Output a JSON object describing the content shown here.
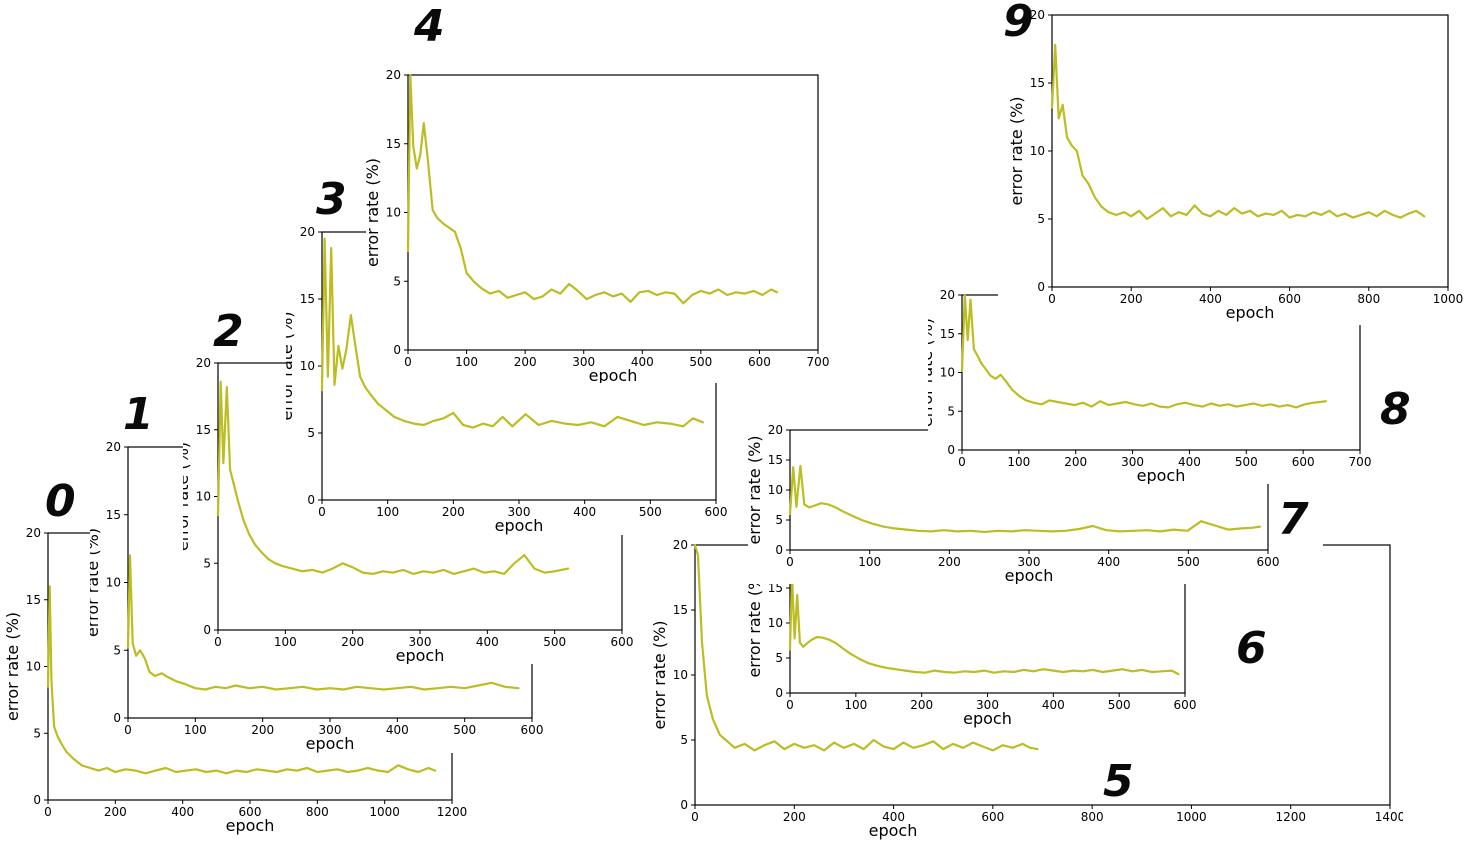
{
  "page": {
    "background": "#ffffff",
    "axis_color": "#000000",
    "line_color": "#bcbd22"
  },
  "chart_data": [
    {
      "type": "line",
      "label": "0",
      "xlabel": "epoch",
      "ylabel": "error rate (%)",
      "xlim": [
        0,
        1200
      ],
      "ylim": [
        0,
        20
      ],
      "xticks": [
        0,
        200,
        400,
        600,
        800,
        1000,
        1200
      ],
      "yticks": [
        0,
        5,
        10,
        15,
        20
      ],
      "line_color": "#bcbd22",
      "grid": false,
      "legend": "none",
      "x": [
        0,
        5,
        10,
        18,
        28,
        40,
        55,
        75,
        100,
        125,
        150,
        175,
        200,
        230,
        260,
        290,
        320,
        350,
        380,
        410,
        440,
        470,
        500,
        530,
        560,
        590,
        620,
        650,
        680,
        710,
        740,
        770,
        800,
        830,
        860,
        890,
        920,
        950,
        980,
        1010,
        1040,
        1070,
        1100,
        1130,
        1150
      ],
      "y": [
        8.5,
        16,
        9,
        5.5,
        4.8,
        4.2,
        3.6,
        3.1,
        2.6,
        2.4,
        2.2,
        2.4,
        2.1,
        2.3,
        2.2,
        2.0,
        2.2,
        2.4,
        2.1,
        2.2,
        2.3,
        2.1,
        2.2,
        2.0,
        2.2,
        2.1,
        2.3,
        2.2,
        2.1,
        2.3,
        2.2,
        2.4,
        2.1,
        2.2,
        2.3,
        2.1,
        2.2,
        2.4,
        2.2,
        2.1,
        2.6,
        2.3,
        2.1,
        2.4,
        2.2
      ]
    },
    {
      "type": "line",
      "label": "1",
      "xlabel": "epoch",
      "ylabel": "error rate (%)",
      "xlim": [
        0,
        600
      ],
      "ylim": [
        0,
        20
      ],
      "xticks": [
        0,
        100,
        200,
        300,
        400,
        500,
        600
      ],
      "yticks": [
        0,
        5,
        10,
        15,
        20
      ],
      "line_color": "#bcbd22",
      "grid": false,
      "legend": "none",
      "x": [
        0,
        3,
        7,
        12,
        18,
        25,
        32,
        40,
        50,
        60,
        72,
        85,
        100,
        115,
        130,
        145,
        160,
        180,
        200,
        220,
        240,
        260,
        280,
        300,
        320,
        340,
        360,
        380,
        400,
        420,
        440,
        460,
        480,
        500,
        520,
        540,
        560,
        580
      ],
      "y": [
        5.2,
        12,
        5.5,
        4.6,
        5.0,
        4.4,
        3.4,
        3.1,
        3.3,
        3.0,
        2.7,
        2.5,
        2.2,
        2.1,
        2.3,
        2.2,
        2.4,
        2.2,
        2.3,
        2.1,
        2.2,
        2.3,
        2.1,
        2.2,
        2.1,
        2.3,
        2.2,
        2.1,
        2.2,
        2.3,
        2.1,
        2.2,
        2.3,
        2.2,
        2.4,
        2.6,
        2.3,
        2.2
      ]
    },
    {
      "type": "line",
      "label": "2",
      "xlabel": "epoch",
      "ylabel": "error rate (%)",
      "xlim": [
        0,
        600
      ],
      "ylim": [
        0,
        20
      ],
      "xticks": [
        0,
        100,
        200,
        300,
        400,
        500,
        600
      ],
      "yticks": [
        0,
        5,
        10,
        15,
        20
      ],
      "line_color": "#bcbd22",
      "grid": false,
      "legend": "none",
      "x": [
        0,
        4,
        8,
        13,
        18,
        24,
        30,
        38,
        46,
        55,
        65,
        75,
        85,
        95,
        110,
        125,
        140,
        155,
        170,
        185,
        200,
        215,
        230,
        245,
        260,
        275,
        290,
        305,
        320,
        335,
        350,
        365,
        380,
        395,
        410,
        425,
        440,
        455,
        470,
        485,
        500,
        520
      ],
      "y": [
        8.6,
        18.6,
        12.5,
        18.2,
        12.0,
        10.8,
        9.6,
        8.2,
        7.2,
        6.4,
        5.8,
        5.3,
        5.0,
        4.8,
        4.6,
        4.4,
        4.5,
        4.3,
        4.6,
        5.0,
        4.7,
        4.3,
        4.2,
        4.4,
        4.3,
        4.5,
        4.2,
        4.4,
        4.3,
        4.5,
        4.2,
        4.4,
        4.6,
        4.3,
        4.4,
        4.2,
        5.0,
        5.6,
        4.6,
        4.3,
        4.4,
        4.6
      ]
    },
    {
      "type": "line",
      "label": "3",
      "xlabel": "epoch",
      "ylabel": "error rate (%)",
      "xlim": [
        0,
        600
      ],
      "ylim": [
        0,
        20
      ],
      "xticks": [
        0,
        100,
        200,
        300,
        400,
        500,
        600
      ],
      "yticks": [
        0,
        5,
        10,
        15,
        20
      ],
      "line_color": "#bcbd22",
      "grid": false,
      "legend": "none",
      "x": [
        0,
        4,
        9,
        14,
        19,
        25,
        31,
        37,
        44,
        50,
        58,
        66,
        75,
        85,
        95,
        110,
        125,
        140,
        155,
        170,
        185,
        200,
        215,
        230,
        245,
        260,
        275,
        290,
        310,
        330,
        350,
        370,
        390,
        410,
        430,
        450,
        470,
        490,
        510,
        530,
        550,
        565,
        580
      ],
      "y": [
        8.2,
        19.5,
        9.2,
        18.8,
        8.6,
        11.5,
        9.8,
        11.2,
        13.8,
        11.8,
        9.2,
        8.4,
        7.8,
        7.2,
        6.8,
        6.2,
        5.9,
        5.7,
        5.6,
        5.9,
        6.1,
        6.5,
        5.6,
        5.4,
        5.7,
        5.5,
        6.2,
        5.5,
        6.4,
        5.6,
        5.9,
        5.7,
        5.6,
        5.8,
        5.5,
        6.2,
        5.9,
        5.6,
        5.8,
        5.7,
        5.5,
        6.1,
        5.8
      ]
    },
    {
      "type": "line",
      "label": "4",
      "xlabel": "epoch",
      "ylabel": "error rate (%)",
      "xlim": [
        0,
        700
      ],
      "ylim": [
        0,
        20
      ],
      "xticks": [
        0,
        100,
        200,
        300,
        400,
        500,
        600,
        700
      ],
      "yticks": [
        0,
        5,
        10,
        15,
        20
      ],
      "line_color": "#bcbd22",
      "grid": false,
      "legend": "none",
      "x": [
        0,
        4,
        9,
        15,
        21,
        27,
        34,
        42,
        50,
        60,
        70,
        80,
        90,
        100,
        112,
        125,
        140,
        155,
        170,
        185,
        200,
        215,
        230,
        245,
        260,
        275,
        290,
        305,
        320,
        335,
        350,
        365,
        380,
        395,
        410,
        425,
        440,
        455,
        470,
        485,
        500,
        515,
        530,
        545,
        560,
        575,
        590,
        605,
        620,
        630
      ],
      "y": [
        7.2,
        20,
        14.8,
        13.2,
        14.2,
        16.5,
        13.8,
        10.2,
        9.6,
        9.2,
        8.9,
        8.6,
        7.4,
        5.6,
        5.0,
        4.5,
        4.1,
        4.3,
        3.8,
        4.0,
        4.2,
        3.7,
        3.9,
        4.4,
        4.1,
        4.8,
        4.3,
        3.7,
        4.0,
        4.2,
        3.9,
        4.1,
        3.5,
        4.2,
        4.3,
        4.0,
        4.2,
        4.1,
        3.4,
        4.0,
        4.3,
        4.1,
        4.4,
        4.0,
        4.2,
        4.1,
        4.3,
        4.0,
        4.4,
        4.2
      ]
    },
    {
      "type": "line",
      "label": "5",
      "xlabel": "epoch",
      "ylabel": "error rate (%)",
      "xlim": [
        0,
        1400
      ],
      "ylim": [
        0,
        20
      ],
      "xticks": [
        0,
        200,
        400,
        600,
        800,
        1000,
        1200,
        1400
      ],
      "yticks": [
        0,
        5,
        10,
        15,
        20
      ],
      "line_color": "#bcbd22",
      "grid": false,
      "legend": "none",
      "x": [
        0,
        6,
        14,
        24,
        36,
        50,
        65,
        80,
        100,
        120,
        140,
        160,
        180,
        200,
        220,
        240,
        260,
        280,
        300,
        320,
        340,
        360,
        380,
        400,
        420,
        440,
        460,
        480,
        500,
        520,
        540,
        560,
        580,
        600,
        620,
        640,
        660,
        675,
        690
      ],
      "y": [
        20,
        19.2,
        12.5,
        8.4,
        6.6,
        5.4,
        4.9,
        4.4,
        4.7,
        4.2,
        4.6,
        4.9,
        4.3,
        4.7,
        4.4,
        4.6,
        4.2,
        4.8,
        4.4,
        4.7,
        4.3,
        5.0,
        4.5,
        4.3,
        4.8,
        4.4,
        4.6,
        4.9,
        4.3,
        4.7,
        4.4,
        4.8,
        4.5,
        4.2,
        4.6,
        4.4,
        4.7,
        4.4,
        4.3
      ]
    },
    {
      "type": "line",
      "label": "6",
      "xlabel": "epoch",
      "ylabel": "error rate (%)",
      "xlim": [
        0,
        600
      ],
      "ylim": [
        0,
        20
      ],
      "xticks": [
        0,
        100,
        200,
        300,
        400,
        500,
        600
      ],
      "yticks": [
        0,
        5,
        10,
        15,
        20
      ],
      "line_color": "#bcbd22",
      "grid": false,
      "legend": "none",
      "x": [
        0,
        3,
        7,
        11,
        15,
        20,
        26,
        33,
        41,
        50,
        60,
        70,
        80,
        92,
        105,
        118,
        132,
        146,
        160,
        175,
        190,
        205,
        220,
        235,
        250,
        265,
        280,
        295,
        310,
        325,
        340,
        355,
        370,
        385,
        400,
        415,
        430,
        445,
        460,
        475,
        490,
        505,
        520,
        535,
        550,
        565,
        580,
        590
      ],
      "y": [
        6.2,
        16.8,
        7.8,
        14.0,
        7.2,
        6.6,
        7.1,
        7.6,
        8.0,
        7.9,
        7.6,
        7.1,
        6.4,
        5.6,
        4.9,
        4.3,
        3.9,
        3.6,
        3.4,
        3.2,
        3.0,
        2.9,
        3.2,
        3.0,
        2.9,
        3.1,
        3.0,
        3.2,
        2.9,
        3.1,
        3.0,
        3.3,
        3.1,
        3.4,
        3.2,
        3.0,
        3.2,
        3.1,
        3.3,
        3.0,
        3.2,
        3.4,
        3.1,
        3.3,
        3.0,
        3.1,
        3.2,
        2.7
      ]
    },
    {
      "type": "line",
      "label": "7",
      "xlabel": "epoch",
      "ylabel": "error rate (%)",
      "xlim": [
        0,
        600
      ],
      "ylim": [
        0,
        20
      ],
      "xticks": [
        0,
        100,
        200,
        300,
        400,
        500,
        600
      ],
      "yticks": [
        0,
        5,
        10,
        15,
        20
      ],
      "line_color": "#bcbd22",
      "grid": false,
      "legend": "none",
      "x": [
        0,
        4,
        8,
        13,
        18,
        24,
        31,
        39,
        48,
        57,
        67,
        78,
        90,
        103,
        117,
        131,
        146,
        161,
        177,
        193,
        210,
        227,
        244,
        261,
        278,
        295,
        312,
        329,
        346,
        363,
        380,
        397,
        414,
        431,
        448,
        465,
        482,
        499,
        516,
        533,
        550,
        567,
        580,
        590
      ],
      "y": [
        6.0,
        13.8,
        7.2,
        14.0,
        7.6,
        7.1,
        7.4,
        7.8,
        7.6,
        7.1,
        6.4,
        5.7,
        5.0,
        4.4,
        3.9,
        3.6,
        3.4,
        3.2,
        3.1,
        3.3,
        3.1,
        3.2,
        3.0,
        3.2,
        3.1,
        3.3,
        3.2,
        3.1,
        3.2,
        3.5,
        4.0,
        3.3,
        3.1,
        3.2,
        3.3,
        3.1,
        3.4,
        3.2,
        4.8,
        4.1,
        3.4,
        3.6,
        3.7,
        3.9
      ]
    },
    {
      "type": "line",
      "label": "8",
      "xlabel": "epoch",
      "ylabel": "error rate (%)",
      "xlim": [
        0,
        700
      ],
      "ylim": [
        0,
        20
      ],
      "xticks": [
        0,
        100,
        200,
        300,
        400,
        500,
        600,
        700
      ],
      "yticks": [
        0,
        5,
        10,
        15,
        20
      ],
      "line_color": "#bcbd22",
      "grid": false,
      "legend": "none",
      "x": [
        0,
        5,
        10,
        15,
        21,
        27,
        34,
        42,
        50,
        59,
        68,
        78,
        88,
        100,
        113,
        126,
        140,
        154,
        168,
        183,
        198,
        213,
        228,
        243,
        258,
        273,
        288,
        303,
        318,
        333,
        348,
        363,
        378,
        393,
        408,
        423,
        438,
        453,
        468,
        483,
        498,
        513,
        528,
        543,
        558,
        573,
        588,
        603,
        618,
        630,
        640
      ],
      "y": [
        10.2,
        20,
        14.2,
        19.4,
        13.0,
        12.2,
        11.2,
        10.4,
        9.6,
        9.2,
        9.7,
        8.8,
        7.8,
        7.0,
        6.4,
        6.1,
        5.9,
        6.4,
        6.2,
        6.0,
        5.8,
        6.1,
        5.6,
        6.3,
        5.8,
        6.0,
        6.2,
        5.9,
        5.7,
        6.0,
        5.6,
        5.5,
        5.9,
        6.1,
        5.8,
        5.6,
        6.0,
        5.7,
        5.9,
        5.6,
        5.8,
        6.0,
        5.7,
        5.9,
        5.6,
        5.8,
        5.5,
        5.9,
        6.1,
        6.2,
        6.3
      ]
    },
    {
      "type": "line",
      "label": "9",
      "xlabel": "epoch",
      "ylabel": "error rate (%)",
      "xlim": [
        0,
        1000
      ],
      "ylim": [
        0,
        20
      ],
      "xticks": [
        0,
        200,
        400,
        600,
        800,
        1000
      ],
      "yticks": [
        0,
        5,
        10,
        15,
        20
      ],
      "line_color": "#bcbd22",
      "grid": false,
      "legend": "none",
      "x": [
        0,
        8,
        17,
        27,
        38,
        50,
        63,
        77,
        92,
        108,
        125,
        143,
        162,
        182,
        200,
        220,
        240,
        260,
        280,
        300,
        320,
        340,
        360,
        380,
        400,
        420,
        440,
        460,
        480,
        500,
        520,
        540,
        560,
        580,
        600,
        620,
        640,
        660,
        680,
        700,
        720,
        740,
        760,
        780,
        800,
        820,
        840,
        860,
        880,
        900,
        920,
        940
      ],
      "y": [
        13.2,
        17.8,
        12.4,
        13.4,
        11.0,
        10.4,
        10.0,
        8.2,
        7.6,
        6.6,
        5.9,
        5.5,
        5.3,
        5.5,
        5.2,
        5.6,
        5.0,
        5.4,
        5.8,
        5.2,
        5.5,
        5.3,
        6.0,
        5.4,
        5.2,
        5.6,
        5.3,
        5.8,
        5.4,
        5.6,
        5.2,
        5.4,
        5.3,
        5.6,
        5.1,
        5.3,
        5.2,
        5.5,
        5.3,
        5.6,
        5.2,
        5.4,
        5.1,
        5.3,
        5.5,
        5.2,
        5.6,
        5.3,
        5.1,
        5.4,
        5.6,
        5.2
      ]
    }
  ]
}
